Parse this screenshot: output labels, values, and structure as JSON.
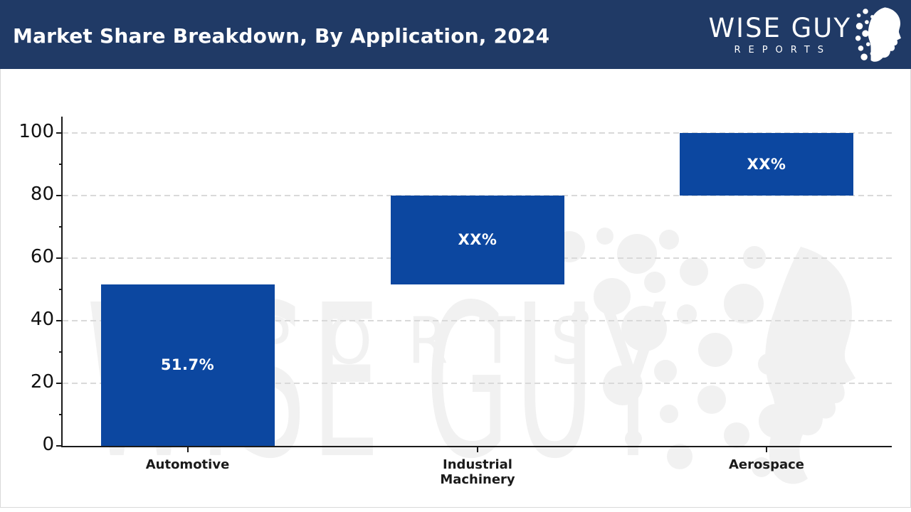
{
  "header": {
    "title": "Market Share Breakdown, By Application, 2024",
    "logo": {
      "brand_line1": "WISE GUY",
      "brand_line2": "REPORTS"
    }
  },
  "watermark": {
    "line1": "WISE GUY",
    "line2": "REPORTS"
  },
  "chart_data": {
    "type": "bar",
    "subtype": "waterfall",
    "title": "Market Share Breakdown, By Application, 2024",
    "categories": [
      "Automotive",
      "Industrial Machinery",
      "Aerospace"
    ],
    "bars": [
      {
        "category": "Automotive",
        "start": 0,
        "end": 51.7,
        "label": "51.7%"
      },
      {
        "category": "Industrial Machinery",
        "start": 51.7,
        "end": 80,
        "label": "XX%"
      },
      {
        "category": "Aerospace",
        "start": 80,
        "end": 100,
        "label": "XX%"
      }
    ],
    "xlabel": "",
    "ylabel": "",
    "ylim": [
      0,
      100
    ],
    "yticks": [
      0,
      20,
      40,
      60,
      80,
      100
    ],
    "minor_ytick_step": 10,
    "grid": "horizontal-dashed",
    "legend": "none",
    "bar_color": "#0c47a0",
    "bar_label_color": "#ffffff",
    "axis_color": "#1a1a1a",
    "gridline_color": "#d9d9d9",
    "header_color": "#203a66",
    "watermark_color": "#f1f1f1"
  }
}
